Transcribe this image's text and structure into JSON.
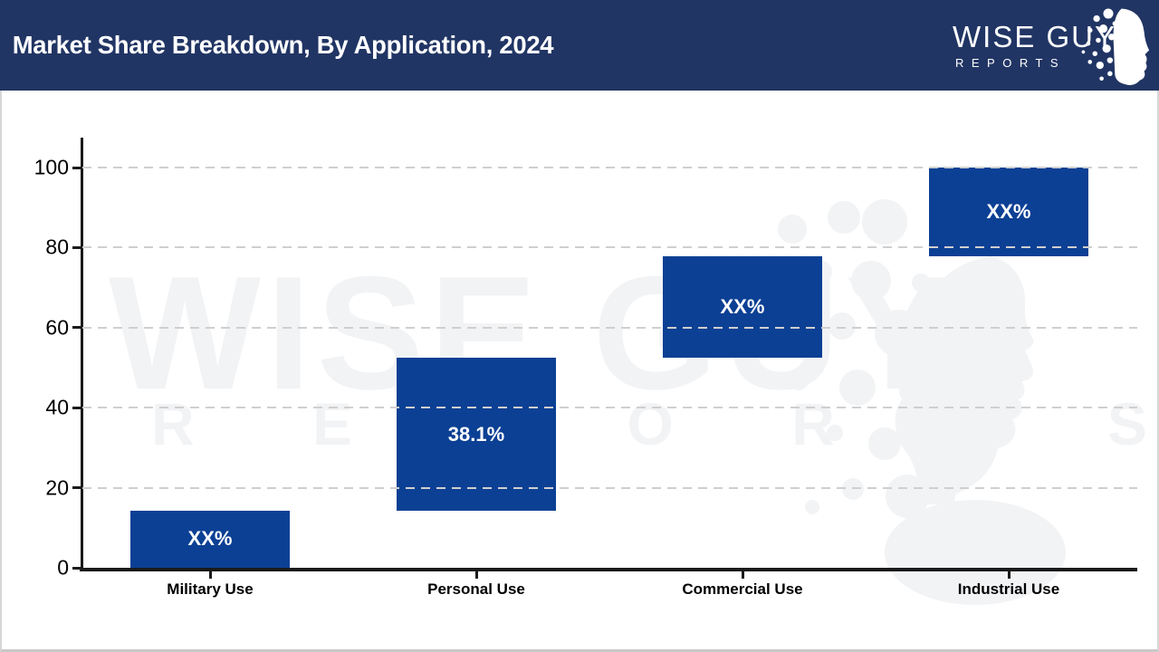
{
  "header": {
    "title": "Market Share Breakdown, By Application, 2024",
    "logo": {
      "line1": "WISE GUY",
      "line2": "REPORTS"
    }
  },
  "watermark": {
    "line1": "WISE GUY",
    "line2": "REPORTS"
  },
  "colors": {
    "header_bg": "#213564",
    "bar_fill": "#0c4094",
    "grid": "#cfcfcf",
    "axis": "#1a1a1a",
    "watermark": "#f2f3f5",
    "bar_label_text": "#ffffff"
  },
  "chart_data": {
    "type": "bar",
    "subtype": "waterfall",
    "title": "Market Share Breakdown, By Application, 2024",
    "categories": [
      "Military Use",
      "Personal Use",
      "Commercial Use",
      "Industrial Use"
    ],
    "segments": [
      {
        "category": "Military Use",
        "start": 0,
        "end": 14.3,
        "label": "XX%"
      },
      {
        "category": "Personal Use",
        "start": 14.3,
        "end": 52.4,
        "label": "38.1%"
      },
      {
        "category": "Commercial Use",
        "start": 52.4,
        "end": 77.8,
        "label": "XX%"
      },
      {
        "category": "Industrial Use",
        "start": 77.8,
        "end": 100,
        "label": "XX%"
      }
    ],
    "yticks": [
      0,
      20,
      40,
      60,
      80,
      100
    ],
    "ylim": [
      0,
      107
    ],
    "xlabel": "",
    "ylabel": "",
    "grid": "horizontal-dashed",
    "legend": false
  }
}
